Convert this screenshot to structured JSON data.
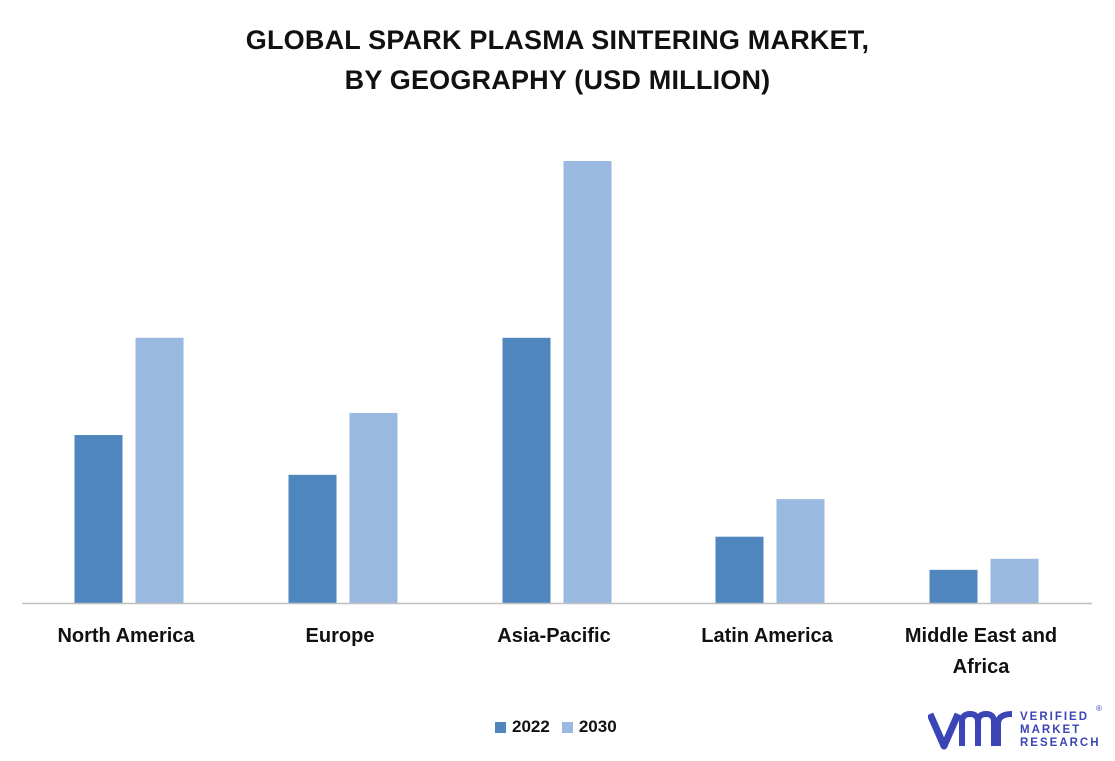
{
  "title_lines": [
    "GLOBAL SPARK PLASMA SINTERING MARKET,",
    "BY GEOGRAPHY (USD MILLION)"
  ],
  "colors": {
    "s2022": "#4f86bd",
    "s2030": "#9ab9e0",
    "axis": "#bfbfbf",
    "brand": "#3b45b5"
  },
  "legend": [
    "2022",
    "2030"
  ],
  "logo": {
    "line1": "VERIFIED",
    "line2": "MARKET",
    "line3": "RESEARCH",
    "icon": "vmr-logo-icon"
  },
  "chart_data": {
    "type": "bar",
    "title": "GLOBAL SPARK PLASMA SINTERING MARKET, BY GEOGRAPHY (USD MILLION)",
    "categories": [
      "North America",
      "Europe",
      "Asia-Pacific",
      "Latin America",
      "Middle East and Africa"
    ],
    "series": [
      {
        "name": "2022",
        "values": [
          38,
          29,
          60,
          15,
          7.5
        ]
      },
      {
        "name": "2030",
        "values": [
          60,
          43,
          100,
          23.5,
          10
        ]
      }
    ],
    "ylim": [
      0,
      100
    ],
    "grid": false,
    "legend_position": "bottom"
  }
}
